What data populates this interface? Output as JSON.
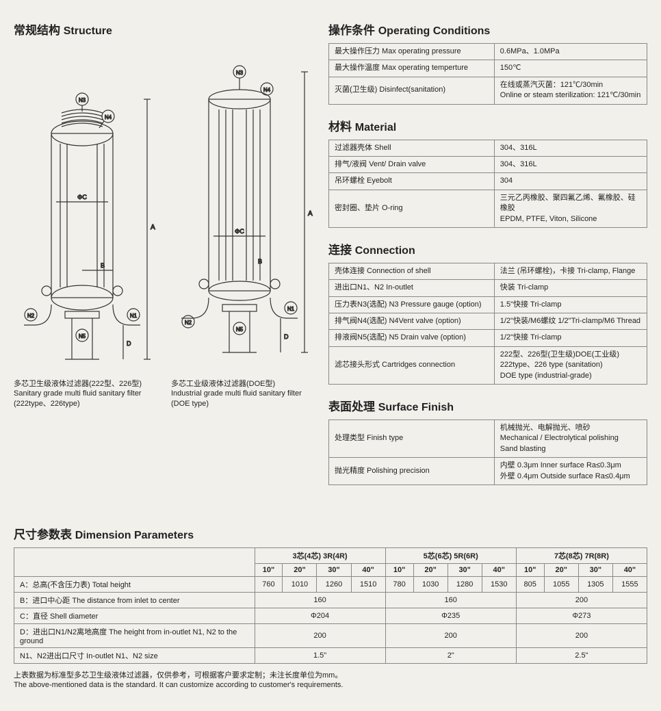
{
  "structure": {
    "title_cn": "常规结构",
    "title_en": "Structure",
    "diagram1": {
      "labels": {
        "n1": "N1",
        "n2": "N2",
        "n3": "N3",
        "n4": "N4",
        "n5": "N5",
        "a": "A",
        "b": "B",
        "c": "ΦC",
        "d": "D"
      },
      "caption_cn": "多芯卫生级液体过滤器(222型、226型)",
      "caption_en": "Sanitary grade multi fluid sanitary filter (222type、226type)"
    },
    "diagram2": {
      "labels": {
        "n1": "N1",
        "n2": "N2",
        "n3": "N3",
        "n4": "N4",
        "n5": "N5",
        "a": "A",
        "b": "B",
        "c": "ΦC",
        "d": "D"
      },
      "caption_cn": "多芯工业级液体过滤器(DOE型)",
      "caption_en": "Industrial grade multi fluid sanitary filter (DOE type)"
    }
  },
  "operating_conditions": {
    "title_cn": "操作条件",
    "title_en": "Operating Conditions",
    "rows": [
      {
        "label": "最大操作压力 Max operating pressure",
        "value": "0.6MPa、1.0MPa"
      },
      {
        "label": "最大操作温度 Max operating temperture",
        "value": "150℃"
      },
      {
        "label": "灭菌(卫生级) Disinfect(sanitation)",
        "value": "在线或蒸汽灭菌：121℃/30min\nOnline or steam sterilization: 121℃/30min"
      }
    ]
  },
  "material": {
    "title_cn": "材料",
    "title_en": "Material",
    "rows": [
      {
        "label": "过滤器壳体 Shell",
        "value": "304、316L"
      },
      {
        "label": "排气/液阀 Vent/ Drain valve",
        "value": "304、316L"
      },
      {
        "label": "吊环螺栓 Eyebolt",
        "value": "304"
      },
      {
        "label": "密封圈、垫片 O-ring",
        "value": "三元乙丙橡胶、聚四氟乙烯、氟橡胶、硅橡胶\nEPDM, PTFE, Viton, Silicone"
      }
    ]
  },
  "connection": {
    "title_cn": "连接",
    "title_en": "Connection",
    "rows": [
      {
        "label": "壳体连接 Connection of shell",
        "value": "法兰 (吊环螺栓)，卡接 Tri-clamp, Flange"
      },
      {
        "label": "进出口N1、N2 In-outlet",
        "value": "快装 Tri-clamp"
      },
      {
        "label": "压力表N3(选配) N3 Pressure gauge (option)",
        "value": "1.5\"快接 Tri-clamp"
      },
      {
        "label": "排气阀N4(选配) N4Vent valve (option)",
        "value": "1/2\"快装/M6螺纹 1/2\"Tri-clamp/M6 Thread"
      },
      {
        "label": "排液阀N5(选配) N5 Drain valve (option)",
        "value": "1/2\"快接 Tri-clamp"
      },
      {
        "label": "滤芯接头形式 Cartridges connection",
        "value": "222型、226型(卫生级)DOE(工业级)\n222type、226 type (sanitation)\nDOE type (industrial-grade)"
      }
    ]
  },
  "surface_finish": {
    "title_cn": "表面处理",
    "title_en": "Surface Finish",
    "rows": [
      {
        "label": "处理类型 Finish type",
        "value": "机械抛光、电解抛光、喷砂\nMechanical / Electrolytical polishing\nSand blasting"
      },
      {
        "label": "抛光精度 Polishing precision",
        "value": "内壁 0.3μm Inner surface Ra≤0.3μm\n外壁 0.4μm Outside surface Ra≤0.4μm"
      }
    ]
  },
  "dimensions": {
    "title_cn": "尺寸参数表",
    "title_en": "Dimension Parameters",
    "group_headers": [
      "3芯(4芯) 3R(4R)",
      "5芯(6芯) 5R(6R)",
      "7芯(8芯) 7R(8R)"
    ],
    "sub_headers": [
      "10\"",
      "20\"",
      "30\"",
      "40\"",
      "10\"",
      "20\"",
      "30\"",
      "40\"",
      "10\"",
      "20\"",
      "30\"",
      "40\""
    ],
    "rows": [
      {
        "label": "A：总高(不含压力表) Total height",
        "type": "cells",
        "values": [
          "760",
          "1010",
          "1260",
          "1510",
          "780",
          "1030",
          "1280",
          "1530",
          "805",
          "1055",
          "1305",
          "1555"
        ]
      },
      {
        "label": "B：进口中心距 The distance from inlet to center",
        "type": "span3",
        "values": [
          "160",
          "160",
          "200"
        ]
      },
      {
        "label": "C：直径 Shell diameter",
        "type": "span3",
        "values": [
          "Φ204",
          "Φ235",
          "Φ273"
        ]
      },
      {
        "label": "D：进出口N1/N2离地高度 The height from in-outlet N1, N2 to the ground",
        "type": "span3",
        "values": [
          "200",
          "200",
          "200"
        ]
      },
      {
        "label": "N1、N2进出口尺寸 In-outlet N1、N2 size",
        "type": "span3",
        "values": [
          "1.5\"",
          "2\"",
          "2.5\""
        ]
      }
    ],
    "footnote_cn": "上表数据为标准型多芯卫生级液体过滤器，仅供参考，可根据客户要求定制；未注长度单位为mm。",
    "footnote_en": "The above-mentioned data is the standard. It can customize according to customer's requirements."
  },
  "style": {
    "bg": "#f2f0eb",
    "border": "#888888",
    "text": "#222222",
    "title_fontsize": 17,
    "cell_fontsize": 11
  }
}
